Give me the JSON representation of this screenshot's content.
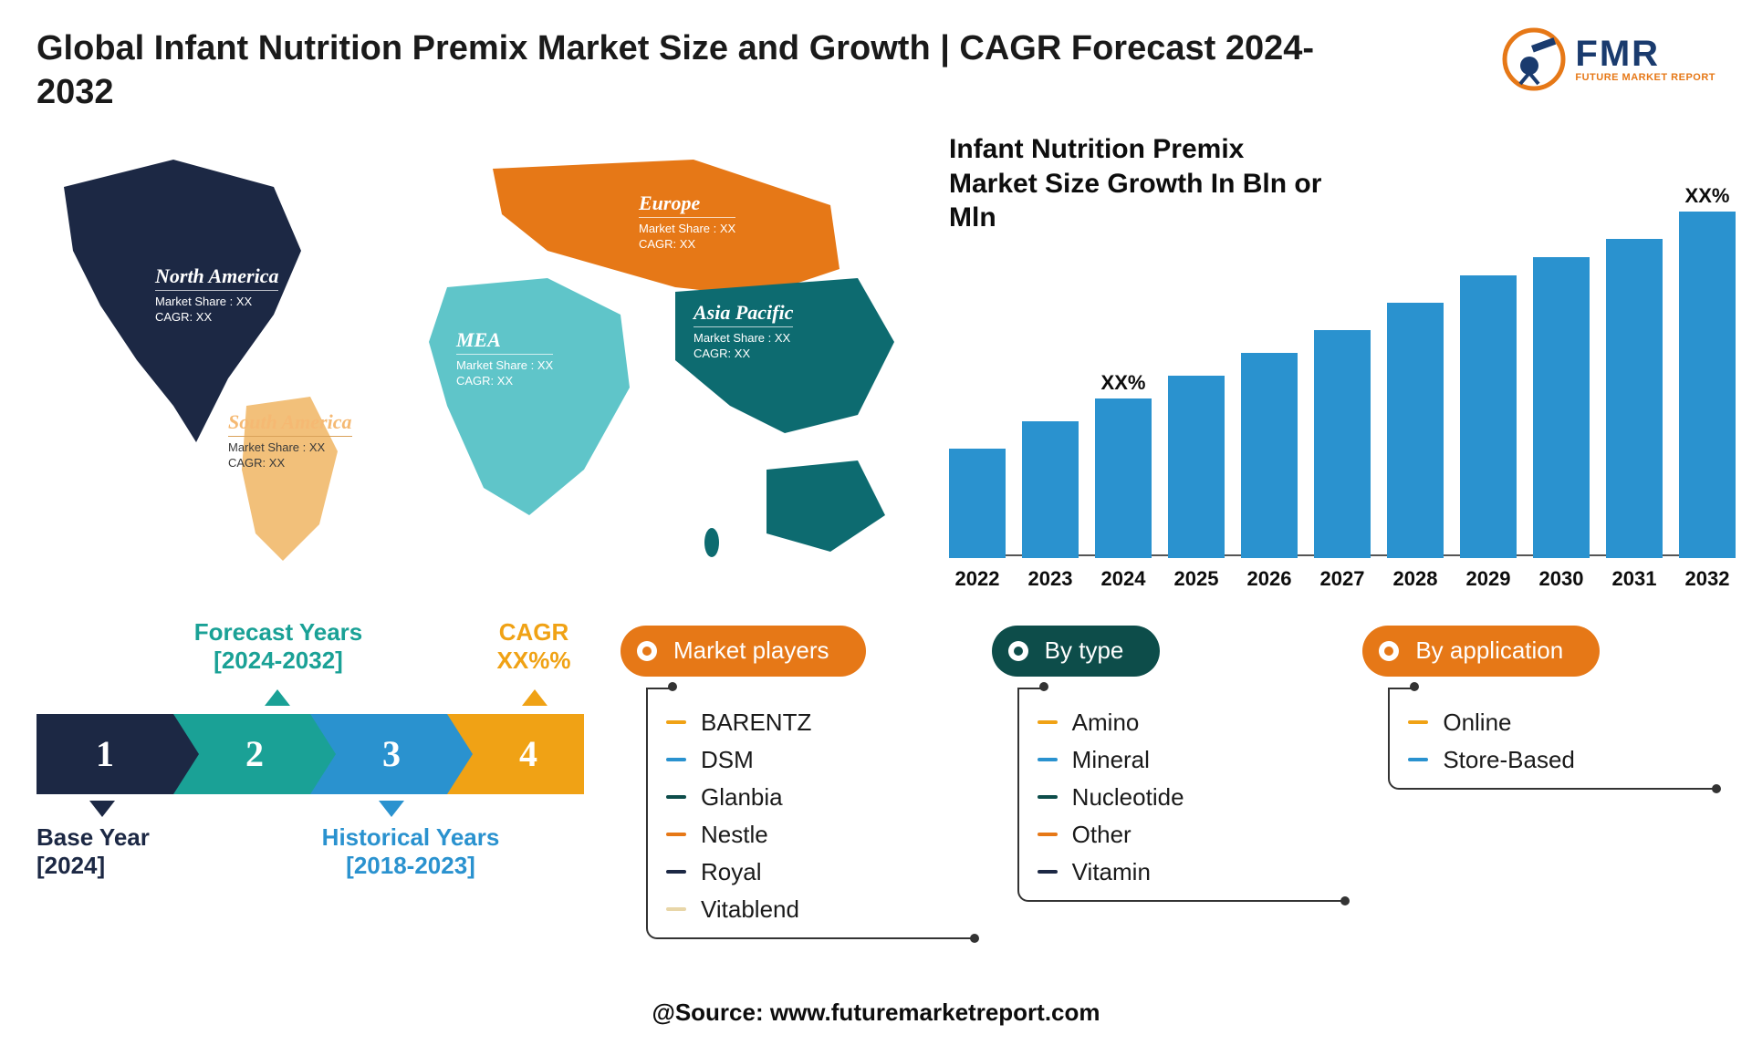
{
  "title": "Global Infant Nutrition Premix Market Size and Growth | CAGR Forecast 2024-2032",
  "logo": {
    "fmr": "FMR",
    "sub": "FUTURE MARKET REPORT"
  },
  "regions": {
    "na": {
      "name": "North America",
      "share": "Market Share : XX",
      "cagr": "CAGR: XX"
    },
    "sa": {
      "name": "South America",
      "share": "Market Share : XX",
      "cagr": "CAGR: XX"
    },
    "eu": {
      "name": "Europe",
      "share": "Market Share : XX",
      "cagr": "CAGR: XX"
    },
    "mea": {
      "name": "MEA",
      "share": "Market Share : XX",
      "cagr": "CAGR: XX"
    },
    "ap": {
      "name": "Asia Pacific",
      "share": "Market Share : XX",
      "cagr": "CAGR: XX"
    }
  },
  "chart": {
    "title": "Infant Nutrition Premix Market Size Growth In Bln or Mln",
    "years": [
      "2022",
      "2023",
      "2024",
      "2025",
      "2026",
      "2027",
      "2028",
      "2029",
      "2030",
      "2031",
      "2032"
    ],
    "heights": [
      120,
      150,
      175,
      200,
      225,
      250,
      280,
      310,
      330,
      350,
      380
    ],
    "bar_color": "#2a92cf",
    "annot2024": "XX%",
    "annot2032": "XX%"
  },
  "timeline": {
    "forecast_label": "Forecast Years",
    "forecast_range": "[2024-2032]",
    "cagr_label": "CAGR",
    "cagr_value": "XX%%",
    "base_label": "Base Year",
    "base_range": "[2024]",
    "hist_label": "Historical Years",
    "hist_range": "[2018-2023]",
    "steps": [
      "1",
      "2",
      "3",
      "4"
    ],
    "colors": {
      "navy": "#1c2844",
      "teal": "#1aa196",
      "blue": "#2a92cf",
      "orange": "#f0a215"
    }
  },
  "columns": {
    "players": {
      "title": "Market players",
      "pill_color": "#e67817",
      "items": [
        {
          "label": "BARENTZ",
          "tick": "#f0a215"
        },
        {
          "label": "DSM",
          "tick": "#2a92cf"
        },
        {
          "label": "Glanbia",
          "tick": "#0d4d4a"
        },
        {
          "label": "Nestle",
          "tick": "#e67817"
        },
        {
          "label": "Royal",
          "tick": "#1c2844"
        },
        {
          "label": "Vitablend",
          "tick": "#e8d6a8"
        }
      ]
    },
    "type": {
      "title": "By type",
      "pill_color": "#0d4d4a",
      "items": [
        {
          "label": "Amino",
          "tick": "#f0a215"
        },
        {
          "label": "Mineral",
          "tick": "#2a92cf"
        },
        {
          "label": "Nucleotide",
          "tick": "#0d4d4a"
        },
        {
          "label": "Other",
          "tick": "#e67817"
        },
        {
          "label": "Vitamin",
          "tick": "#1c2844"
        }
      ]
    },
    "app": {
      "title": "By application",
      "pill_color": "#e67817",
      "items": [
        {
          "label": "Online",
          "tick": "#f0a215"
        },
        {
          "label": "Store-Based",
          "tick": "#2a92cf"
        }
      ]
    }
  },
  "source": "@Source: www.futuremarketreport.com"
}
